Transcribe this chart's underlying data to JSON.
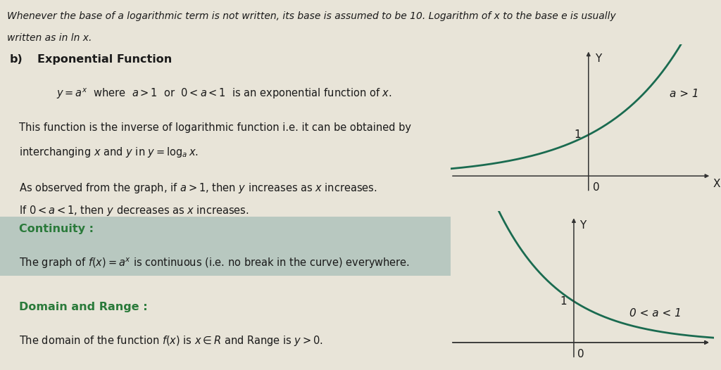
{
  "header_bg": "#6db8a8",
  "header_text_color": "#1a1a1a",
  "page_bg": "#e8e4d8",
  "continuity_bg": "#b8c8c0",
  "curve_color": "#1a6b50",
  "curve_linewidth": 2.0,
  "axis_color": "#333333",
  "text_color": "#1a1a1a",
  "green_heading_color": "#2a7a3a",
  "graph1": {
    "label": "a > 1",
    "base": 2.2,
    "x_range": [
      -2.2,
      2.0
    ],
    "y_range": [
      -0.4,
      3.2
    ],
    "y_intercept_label": "1",
    "origin_label": "0",
    "x_axis_label": "X",
    "y_axis_label": "Y"
  },
  "graph2": {
    "label": "0 < a < 1",
    "base": 0.42,
    "x_range": [
      -2.2,
      2.5
    ],
    "y_range": [
      -0.4,
      3.2
    ],
    "y_intercept_label": "1",
    "origin_label": "0",
    "x_axis_label": "",
    "y_axis_label": "Y"
  },
  "header_line1": "Whenever the base of a logarithmic term is not written, its base is assumed to be 10. Logarithm of x to the base e is usually",
  "header_line2": "written as in ln x.",
  "fs_body": 10.5,
  "fs_heading": 11.5,
  "fs_graph_label": 11,
  "fs_graph_annot": 11
}
